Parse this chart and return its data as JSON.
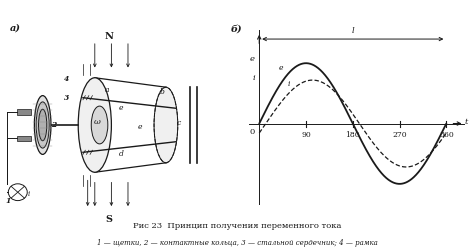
{
  "title_main": "Рис 23  Принцип получения переменного тока",
  "title_sub": "1 — щетки, 2 — контактные кольца, 3 — стальной сердечник; 4 — рамка",
  "panel_a_label": "а)",
  "panel_b_label": "б)",
  "graph_xlabel": "t",
  "graph_ylabel_e": "e",
  "graph_ylabel_i": "i",
  "graph_origin": "0",
  "x_ticks": [
    90,
    180,
    270,
    360
  ],
  "period_label": "l",
  "curve_e_label": "e",
  "curve_i_label": "i",
  "bg_color": "#ffffff",
  "line_color": "#1a1a1a",
  "amplitude_e": 1.0,
  "amplitude_i": 0.72,
  "phase_i": 0.22
}
